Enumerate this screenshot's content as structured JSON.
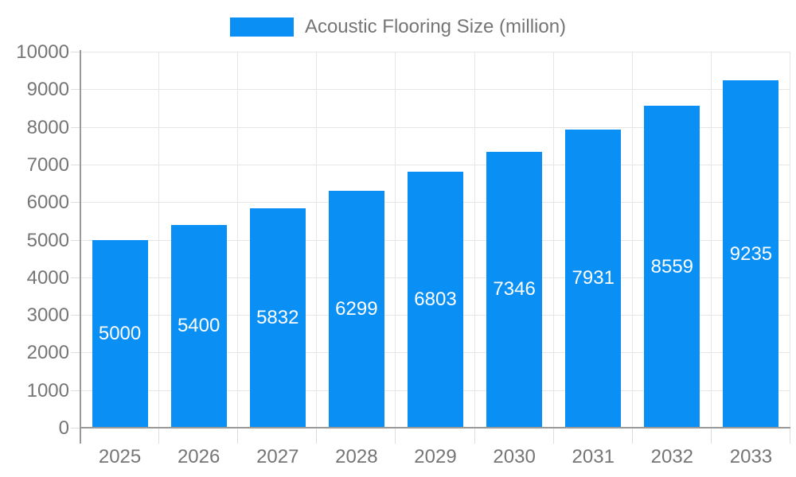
{
  "legend": {
    "label": "Acoustic Flooring Size (million)"
  },
  "chart_data": {
    "type": "bar",
    "title": "Acoustic Flooring Size (million)",
    "categories": [
      "2025",
      "2026",
      "2027",
      "2028",
      "2029",
      "2030",
      "2031",
      "2032",
      "2033"
    ],
    "values": [
      5000,
      5400,
      5832,
      6299,
      6803,
      7346,
      7931,
      8559,
      9235
    ],
    "xlabel": "",
    "ylabel": "",
    "ylim": [
      0,
      10000
    ],
    "ytick_interval": 1000,
    "ytick_labels": [
      "0",
      "1000",
      "2000",
      "3000",
      "4000",
      "5000",
      "6000",
      "7000",
      "8000",
      "9000",
      "10000"
    ],
    "grid": true,
    "legend_position": "top",
    "bar_labels_inside": true,
    "colors": {
      "bar": "#0a90f5",
      "bar_label_text": "#ffffff",
      "axis_line": "#999999",
      "grid_line": "#e6e6e6",
      "tick_line": "#dddddd",
      "axis_text": "#757575",
      "legend_text": "#757575",
      "background": "#ffffff"
    }
  }
}
